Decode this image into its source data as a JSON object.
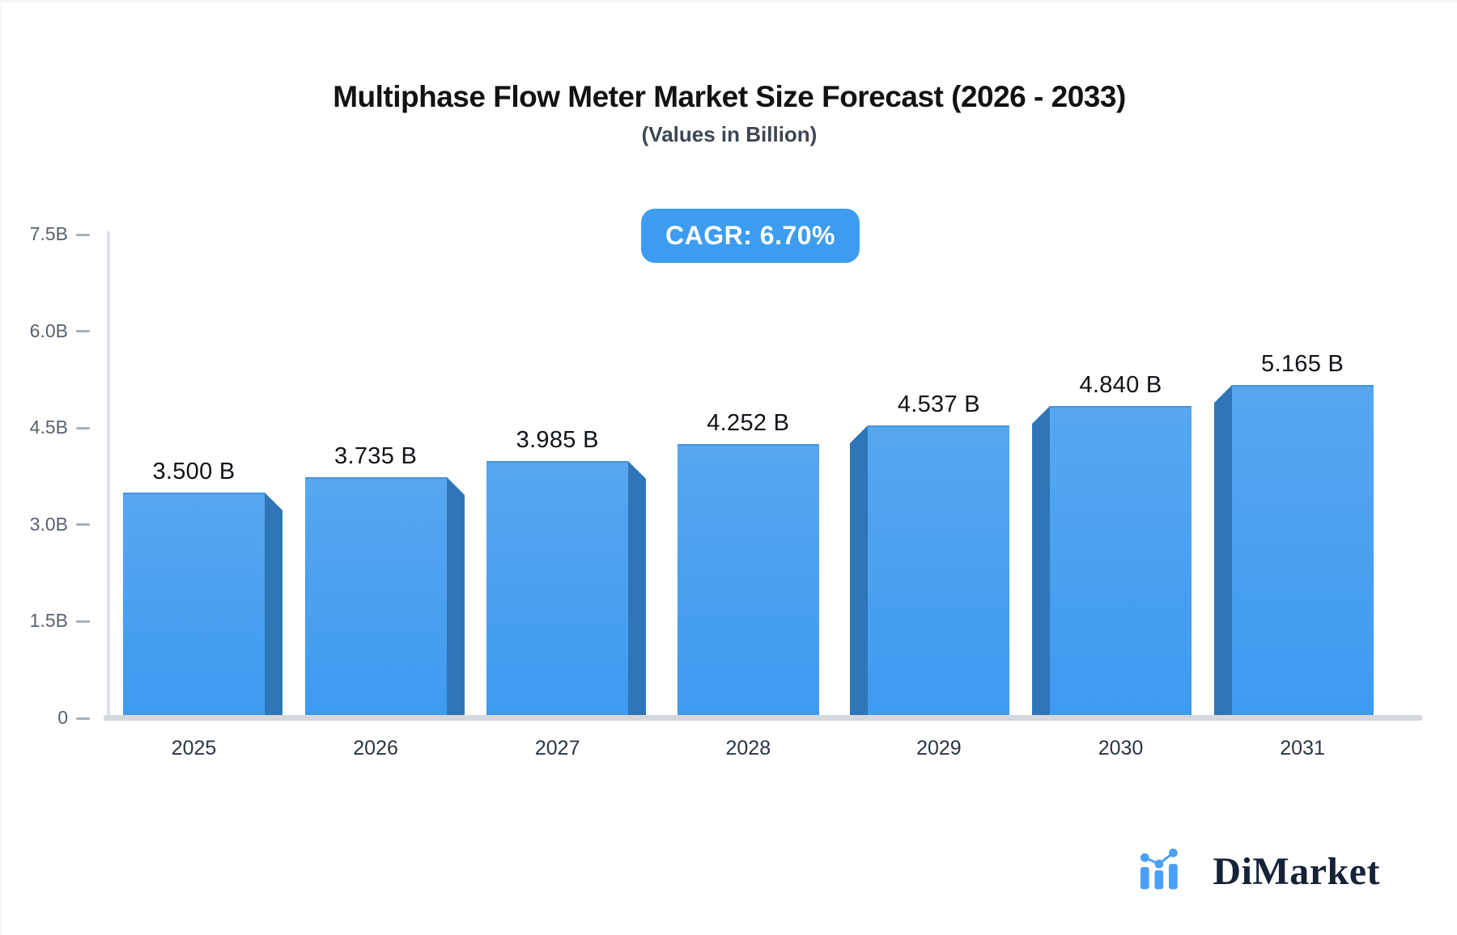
{
  "header": {
    "title": "Multiphase Flow Meter Market Size Forecast (2026 - 2033)",
    "subtitle": "(Values in Billion)",
    "cagr_badge": "CAGR: 6.70%"
  },
  "chart_data": {
    "type": "bar",
    "title": "Multiphase Flow Meter Market Size Forecast (2026 - 2033)",
    "subtitle": "(Values in Billion)",
    "cagr_label": "CAGR: 6.70%",
    "cagr_percent": 6.7,
    "unit": "Billion",
    "categories": [
      "2025",
      "2026",
      "2027",
      "2028",
      "2029",
      "2030",
      "2031"
    ],
    "values": [
      3.5,
      3.735,
      3.985,
      4.252,
      4.537,
      4.84,
      5.165
    ],
    "value_labels": [
      "3.500 B",
      "3.735 B",
      "3.985 B",
      "4.252 B",
      "4.537 B",
      "4.840 B",
      "5.165 B"
    ],
    "xlabel": "",
    "ylabel": "",
    "ylim": [
      0,
      7.5
    ],
    "yticks": [
      0,
      1.5,
      3.0,
      4.5,
      6.0,
      7.5
    ],
    "ytick_labels": [
      "0",
      "1.5B",
      "3.0B",
      "4.5B",
      "6.0B",
      "7.5B"
    ],
    "grid": false,
    "legend": "none",
    "bar_front_color_top": "#57a7f0",
    "bar_front_color_bottom": "#3e9af1",
    "bar_side_color": "#2e76b8",
    "badge_color": "#3d9cf0",
    "perspective": "center-vanishing (left bars show right face, right bars show left face)"
  },
  "logo": {
    "name": "DiMarket",
    "icon": "bar-chart-sparkline-icon",
    "icon_color": "#4aa0f5",
    "text_color": "#152238"
  }
}
